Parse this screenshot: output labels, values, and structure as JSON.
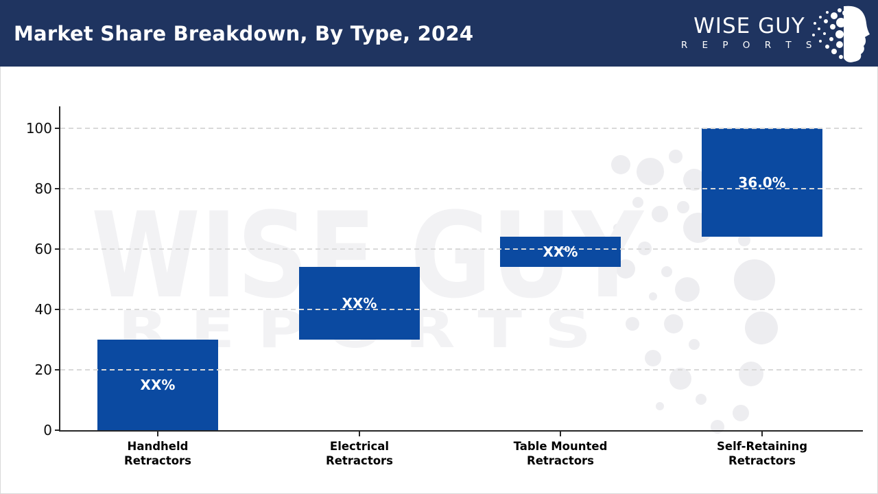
{
  "header": {
    "title": "Market Share Breakdown, By Type, 2024",
    "bg_color": "#1f3460",
    "logo": {
      "line1": "WISE GUY",
      "line2": "R E P O R T S"
    }
  },
  "watermark": {
    "line1": "WISE GUY",
    "line2": "R E P O R T S"
  },
  "chart_data": {
    "type": "bar",
    "subtype": "waterfall",
    "title": "Market Share Breakdown, By Type, 2024",
    "categories": [
      "Handheld Retractors",
      "Electrical Retractors",
      "Table Mounted Retractors",
      "Self-Retaining Retractors"
    ],
    "category_lines": [
      [
        "Handheld",
        "Retractors"
      ],
      [
        "Electrical",
        "Retractors"
      ],
      [
        "Table Mounted",
        "Retractors"
      ],
      [
        "Self-Retaining",
        "Retractors"
      ]
    ],
    "bars": [
      {
        "category": "Handheld Retractors",
        "start": 0,
        "end": 30,
        "label": "XX%"
      },
      {
        "category": "Electrical Retractors",
        "start": 30,
        "end": 54,
        "label": "XX%"
      },
      {
        "category": "Table Mounted Retractors",
        "start": 54,
        "end": 64,
        "label": "XX%"
      },
      {
        "category": "Self-Retaining Retractors",
        "start": 64,
        "end": 100,
        "label": "36.0%"
      }
    ],
    "yticks": [
      0,
      20,
      40,
      60,
      80,
      100
    ],
    "ylim": [
      0,
      107
    ],
    "xlabel": "",
    "ylabel": "",
    "grid": "horizontal-dashed, drawn over bars",
    "legend": "none",
    "bar_color": "#0b4aa1",
    "bar_label_color": "#ffffff",
    "grid_color": "#d9d9d9",
    "axis_color": "#262626"
  }
}
